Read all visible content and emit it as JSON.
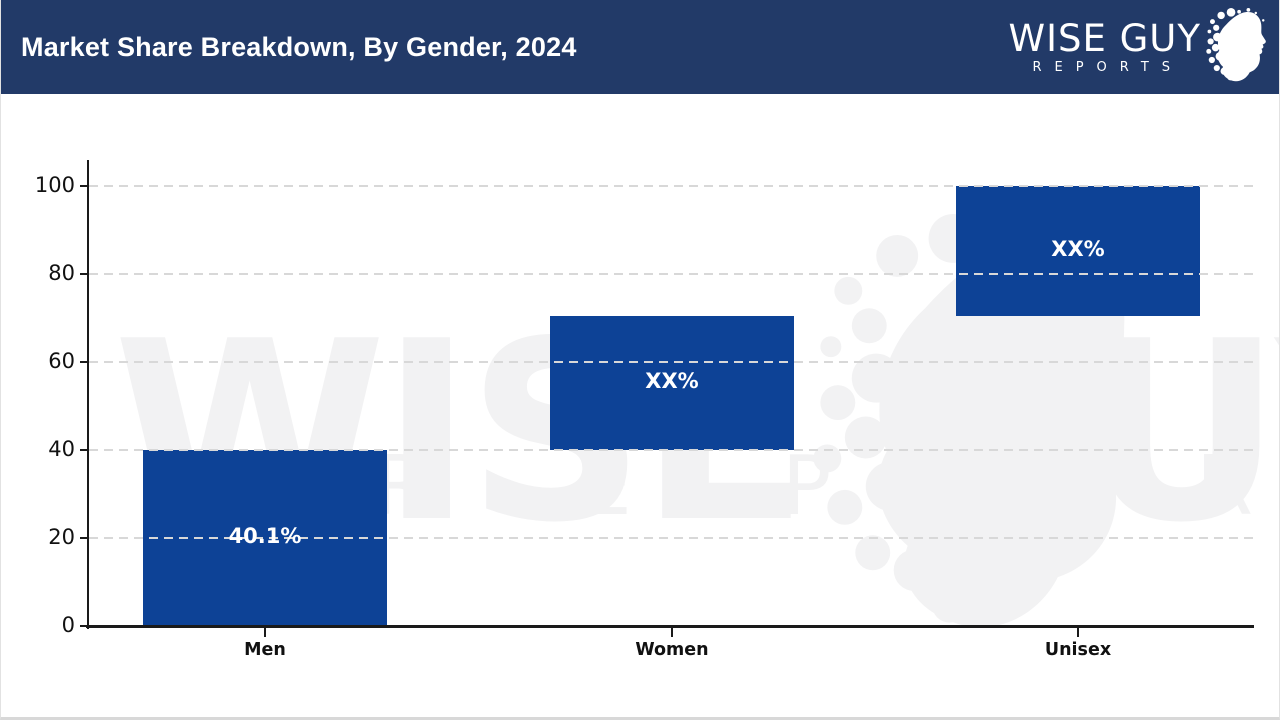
{
  "header": {
    "title": "Market Share Breakdown, By Gender, 2024",
    "logo": {
      "line1": "WISE GUY",
      "line2": "REPORTS"
    }
  },
  "watermark": {
    "line1": "WISE GUY",
    "line2": "R E P O R T S"
  },
  "colors": {
    "header_bg": "#223a68",
    "bar": "#0d4296",
    "grid": "#d8d8d8",
    "axis": "#1a1a1a",
    "watermark": "#f2f2f3",
    "bar_label": "#ffffff"
  },
  "chart_data": {
    "type": "bar",
    "subtype": "floating-waterfall",
    "title": "Market Share Breakdown, By Gender, 2024",
    "categories": [
      "Men",
      "Women",
      "Unisex"
    ],
    "bars": [
      {
        "category": "Men",
        "from": 0,
        "to": 40.1,
        "label": "40.1%"
      },
      {
        "category": "Women",
        "from": 40.1,
        "to": 70.5,
        "label": "XX%"
      },
      {
        "category": "Unisex",
        "from": 70.5,
        "to": 100,
        "label": "XX%"
      }
    ],
    "yticks": [
      0,
      20,
      40,
      60,
      80,
      100
    ],
    "ylim": [
      0,
      105
    ],
    "xlabel": "",
    "ylabel": "",
    "grid": true,
    "gridline_style": "dashed",
    "legend": "none"
  }
}
